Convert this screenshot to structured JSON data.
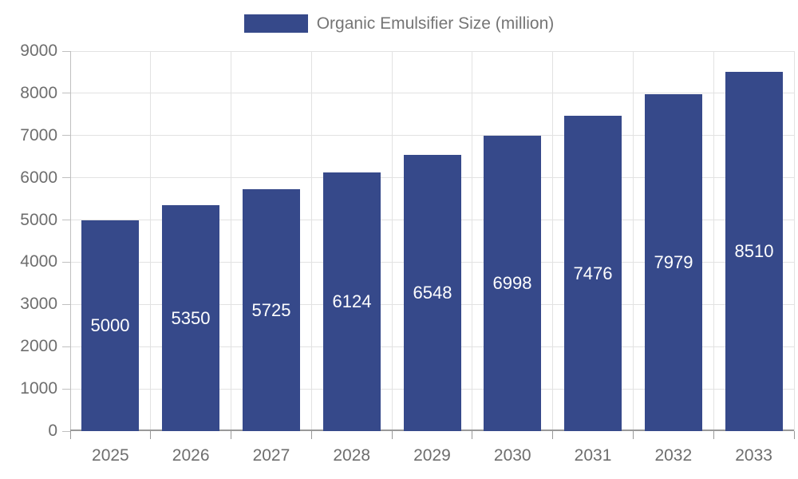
{
  "chart_data": {
    "type": "bar",
    "title": "Organic Emulsifier Size (million)",
    "legend": {
      "label": "Organic Emulsifier Size (million)",
      "position": "top"
    },
    "categories": [
      "2025",
      "2026",
      "2027",
      "2028",
      "2029",
      "2030",
      "2031",
      "2032",
      "2033"
    ],
    "series": [
      {
        "name": "Organic Emulsifier Size (million)",
        "values": [
          5000,
          5350,
          5725,
          6124,
          6548,
          6998,
          7476,
          7979,
          8510
        ]
      }
    ],
    "value_labels_visible": true,
    "xlabel": "",
    "ylabel": "",
    "ylim": [
      0,
      9000
    ],
    "yticks": [
      0,
      1000,
      2000,
      3000,
      4000,
      5000,
      6000,
      7000,
      8000,
      9000
    ],
    "grid": true,
    "colors": {
      "bar": "#36498a",
      "value_label": "#ffffff",
      "axis_text": "#6e6e6e",
      "legend_text": "#757575",
      "gridline": "#e2e2e2",
      "x_axis_line": "#999999",
      "y_axis_line": "#c0c0c0"
    }
  }
}
